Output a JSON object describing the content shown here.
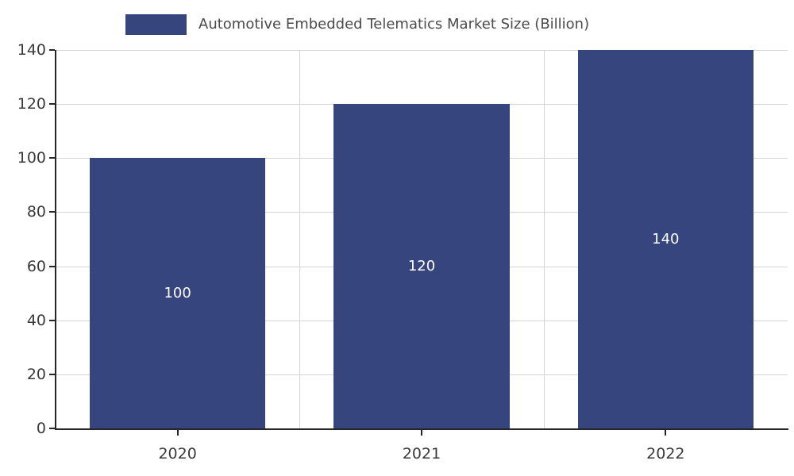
{
  "chart_data": {
    "type": "bar",
    "title": "Automotive Embedded Telematics Market Size (Billion)",
    "categories": [
      "2020",
      "2021",
      "2022"
    ],
    "values": [
      100,
      120,
      140
    ],
    "bar_labels": [
      "100",
      "120",
      "140"
    ],
    "xlabel": "",
    "ylabel": "",
    "ylim": [
      0,
      140
    ],
    "yticks": [
      0,
      20,
      40,
      60,
      80,
      100,
      120,
      140
    ],
    "bar_color": "#36457D",
    "bar_label_color": "#ffffff",
    "grid": "on",
    "legend_position": "top"
  }
}
